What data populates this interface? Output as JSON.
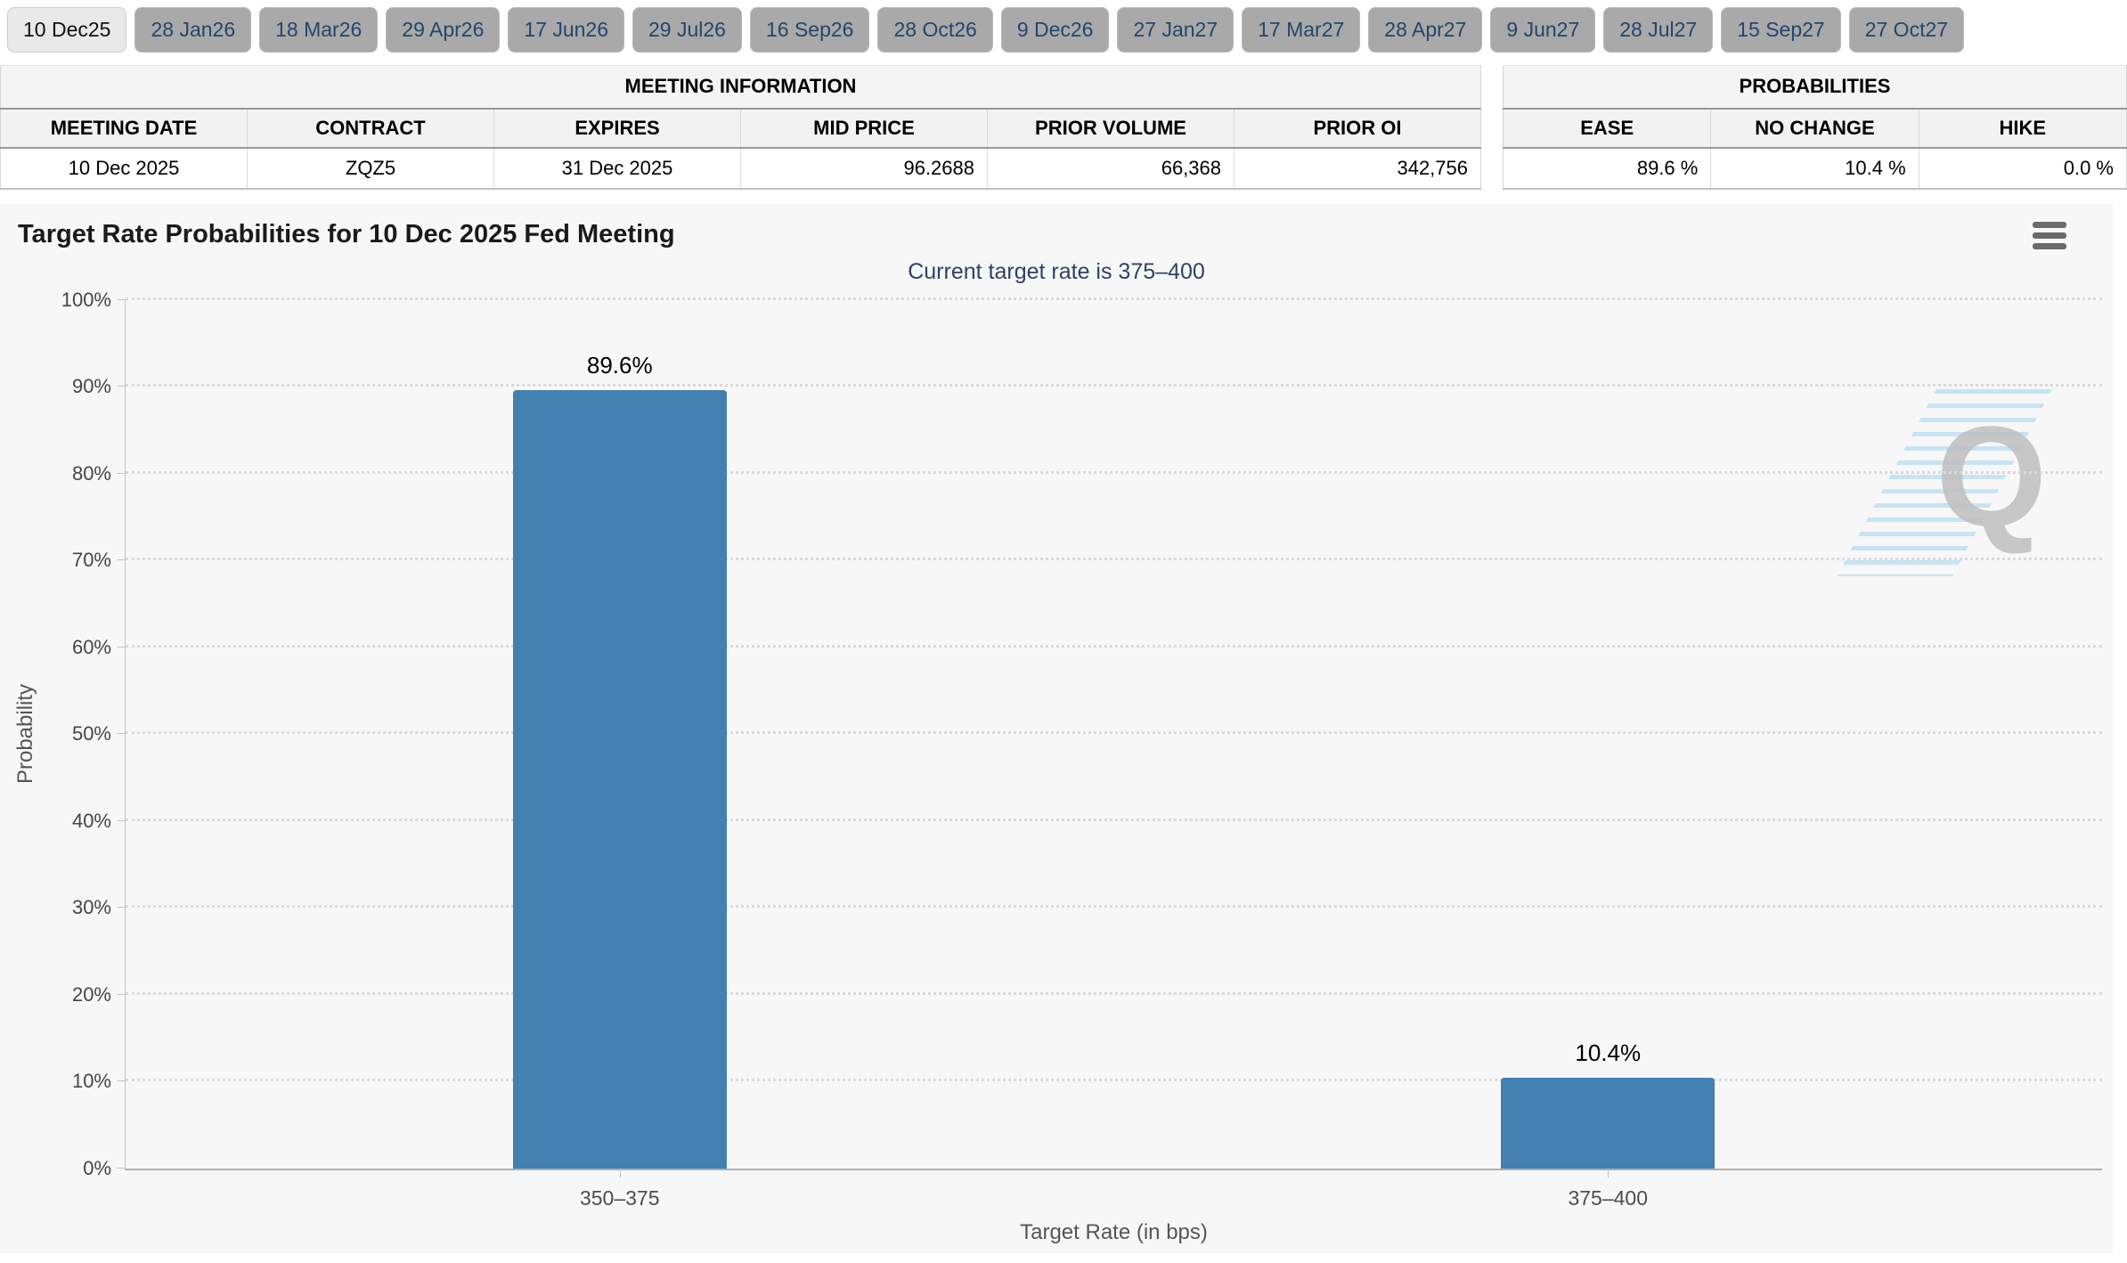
{
  "colors": {
    "bar": "#4380b2",
    "tab_text_navy": "#24466b",
    "subtitle_navy": "#334067",
    "panel_background": "#f7f7f7"
  },
  "tabs": [
    {
      "label": "10 Dec25",
      "active": true
    },
    {
      "label": "28 Jan26",
      "active": false
    },
    {
      "label": "18 Mar26",
      "active": false
    },
    {
      "label": "29 Apr26",
      "active": false
    },
    {
      "label": "17 Jun26",
      "active": false
    },
    {
      "label": "29 Jul26",
      "active": false
    },
    {
      "label": "16 Sep26",
      "active": false
    },
    {
      "label": "28 Oct26",
      "active": false
    },
    {
      "label": "9 Dec26",
      "active": false
    },
    {
      "label": "27 Jan27",
      "active": false
    },
    {
      "label": "17 Mar27",
      "active": false
    },
    {
      "label": "28 Apr27",
      "active": false
    },
    {
      "label": "9 Jun27",
      "active": false
    },
    {
      "label": "28 Jul27",
      "active": false
    },
    {
      "label": "15 Sep27",
      "active": false
    },
    {
      "label": "27 Oct27",
      "active": false
    }
  ],
  "meeting_info": {
    "title": "MEETING INFORMATION",
    "columns": [
      "MEETING DATE",
      "CONTRACT",
      "EXPIRES",
      "MID PRICE",
      "PRIOR VOLUME",
      "PRIOR OI"
    ],
    "widths": [
      19.8,
      15.2,
      17.8,
      14.3,
      20.1,
      12.8
    ],
    "aligns": [
      "center",
      "center",
      "center",
      "right",
      "right",
      "right"
    ],
    "values": [
      "10 Dec 2025",
      "ZQZ5",
      "31 Dec 2025",
      "96.2688",
      "66,368",
      "342,756"
    ]
  },
  "probabilities": {
    "title": "PROBABILITIES",
    "columns": [
      "EASE",
      "NO CHANGE",
      "HIKE"
    ],
    "widths": [
      28.4,
      44.8,
      26.8
    ],
    "aligns": [
      "right",
      "right",
      "right"
    ],
    "values": [
      "89.6 %",
      "10.4 %",
      "0.0 %"
    ]
  },
  "chart": {
    "menu_icon": "hamburger-menu",
    "watermark_letter": "Q"
  },
  "chart_data": {
    "type": "bar",
    "title": "Target Rate Probabilities for 10 Dec 2025 Fed Meeting",
    "subtitle": "Current target rate is 375–400",
    "categories": [
      "350–375",
      "375–400"
    ],
    "values": [
      89.6,
      10.4
    ],
    "value_labels": [
      "89.6%",
      "10.4%"
    ],
    "xlabel": "Target Rate (in bps)",
    "ylabel": "Probability",
    "ylim": [
      0,
      100
    ],
    "ytick_step": 10,
    "ytick_suffix": "%",
    "grid": "dotted horizontal",
    "legend": "none",
    "bar_color": "#4380b2"
  }
}
